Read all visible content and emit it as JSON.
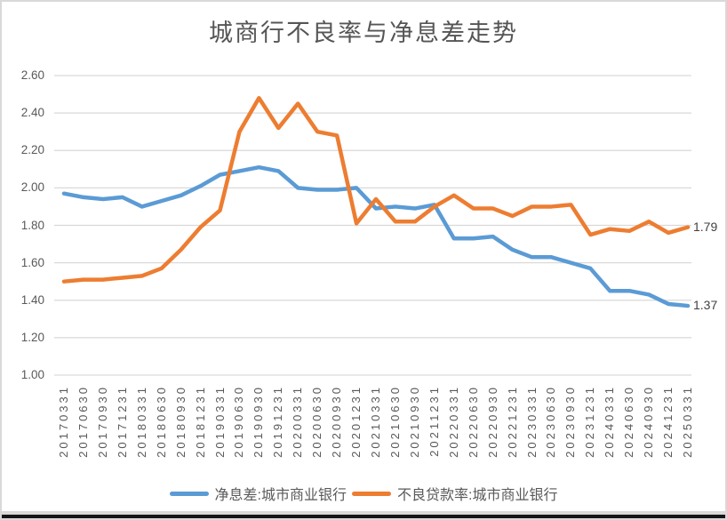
{
  "chart_data": {
    "type": "line",
    "title": "城商行不良率与净息差走势",
    "x": [
      "20170331",
      "20170630",
      "20170930",
      "20171231",
      "20180331",
      "20180630",
      "20180930",
      "20181231",
      "20190331",
      "20190630",
      "20190930",
      "20191231",
      "20200331",
      "20200630",
      "20200930",
      "20201231",
      "20210331",
      "20210630",
      "20210930",
      "20211231",
      "20220331",
      "20220630",
      "20220930",
      "20221231",
      "20230331",
      "20230630",
      "20230930",
      "20231231",
      "20240331",
      "20240630",
      "20240930",
      "20241231",
      "20250331"
    ],
    "series": [
      {
        "id": "nim",
        "name": "净息差:城市商业银行",
        "color": "#5B9BD5",
        "end_label": "1.37",
        "values": [
          1.97,
          1.95,
          1.94,
          1.95,
          1.9,
          1.93,
          1.96,
          2.01,
          2.07,
          2.09,
          2.11,
          2.09,
          2.0,
          1.99,
          1.99,
          2.0,
          1.89,
          1.9,
          1.89,
          1.91,
          1.73,
          1.73,
          1.74,
          1.67,
          1.63,
          1.63,
          1.6,
          1.57,
          1.45,
          1.45,
          1.43,
          1.38,
          1.37
        ]
      },
      {
        "id": "npl",
        "name": "不良贷款率:城市商业银行",
        "color": "#ED7D31",
        "end_label": "1.79",
        "values": [
          1.5,
          1.51,
          1.51,
          1.52,
          1.53,
          1.57,
          1.67,
          1.79,
          1.88,
          2.3,
          2.48,
          2.32,
          2.45,
          2.3,
          2.28,
          1.81,
          1.94,
          1.82,
          1.82,
          1.9,
          1.96,
          1.89,
          1.89,
          1.85,
          1.9,
          1.9,
          1.91,
          1.75,
          1.78,
          1.77,
          1.82,
          1.76,
          1.79
        ]
      }
    ],
    "ylim": [
      1.0,
      2.6
    ],
    "yticks": [
      "2.60",
      "2.40",
      "2.20",
      "2.00",
      "1.80",
      "1.60",
      "1.40",
      "1.20",
      "1.00"
    ],
    "grid": true,
    "gridline_color": "#D9D9D9",
    "axis_text_color": "#595959",
    "legend_position": "bottom"
  }
}
